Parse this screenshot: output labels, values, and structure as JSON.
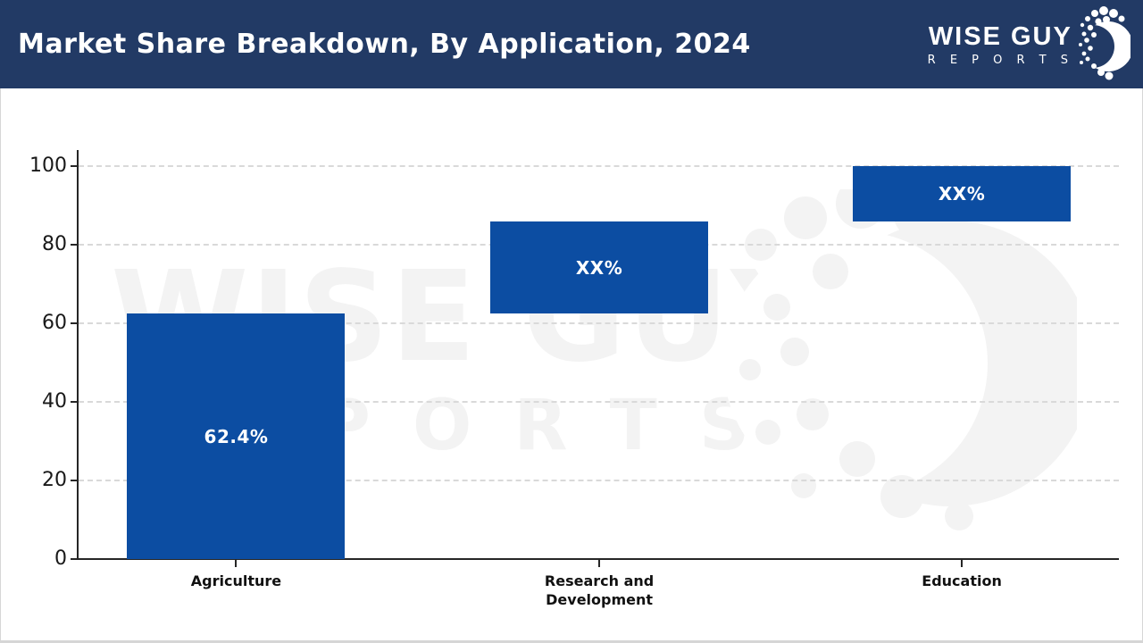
{
  "header": {
    "title": "Market Share Breakdown, By Application, 2024",
    "logo": {
      "line1": "WISE GUY",
      "line2": "R E P O R T S"
    }
  },
  "watermark": {
    "line1": "WISE GUY",
    "line2": "R E P O R T S"
  },
  "chart_data": {
    "type": "bar",
    "subtype": "waterfall-segments",
    "title": "Market Share Breakdown, By Application, 2024",
    "categories": [
      "Agriculture",
      "Research and Development",
      "Education"
    ],
    "segments": [
      {
        "category": "Agriculture",
        "start": 0,
        "end": 62.4,
        "label": "62.4%"
      },
      {
        "category": "Research and Development",
        "start": 62.4,
        "end": 85.8,
        "label": "XX%"
      },
      {
        "category": "Education",
        "start": 85.8,
        "end": 100,
        "label": "XX%"
      }
    ],
    "ylim": [
      0,
      100
    ],
    "yticks": [
      0,
      20,
      40,
      60,
      80,
      100
    ],
    "grid": "horizontal-dashed",
    "bar_color": "#0c4da2",
    "bar_label_color": "#ffffff",
    "header_color": "#223a65",
    "gridline_color": "#d9d9d9",
    "watermark_color": "#f3f3f3"
  }
}
